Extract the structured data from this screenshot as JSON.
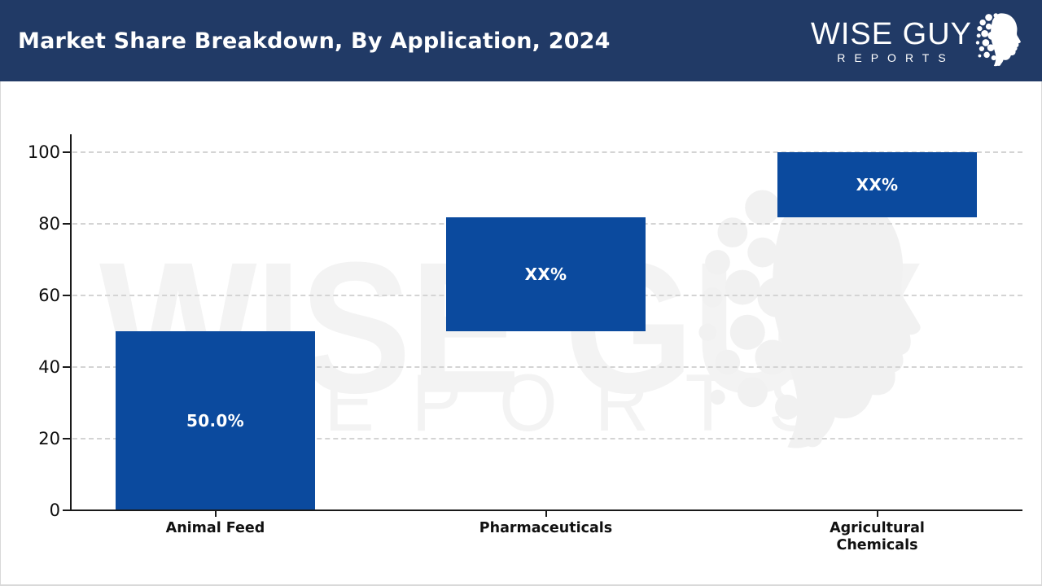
{
  "header": {
    "title": "Market Share Breakdown, By Application, 2024",
    "logo": {
      "line1": "WISE GUY",
      "line2": "REPORTS"
    }
  },
  "watermark": {
    "line1": "WISE GUY",
    "line2": "REPORTS"
  },
  "chart_data": {
    "type": "bar",
    "subtype": "floating-waterfall",
    "title": "Market Share Breakdown, By Application, 2024",
    "categories": [
      "Animal Feed",
      "Pharmaceuticals",
      "Agricultural Chemicals"
    ],
    "bars": [
      {
        "category": "Animal Feed",
        "start": 0,
        "end": 50,
        "label": "50.0%"
      },
      {
        "category": "Pharmaceuticals",
        "start": 50,
        "end": 81.8,
        "label": "XX%"
      },
      {
        "category": "Agricultural Chemicals",
        "start": 81.8,
        "end": 100,
        "label": "XX%"
      }
    ],
    "yticks": [
      0,
      20,
      40,
      60,
      80,
      100
    ],
    "ylim": [
      0,
      100
    ],
    "xlabel": "",
    "ylabel": "",
    "grid": "horizontal-dashed",
    "legend": "none",
    "bar_color": "#0b4a9e",
    "value_label_color": "#ffffff"
  },
  "colors": {
    "header_bg": "#213a66",
    "bar": "#0b4a9e",
    "axis": "#1a1a1a",
    "gridline": "#d4d4d4",
    "watermark": "#f3f3f3",
    "page_bg": "#ffffff"
  }
}
